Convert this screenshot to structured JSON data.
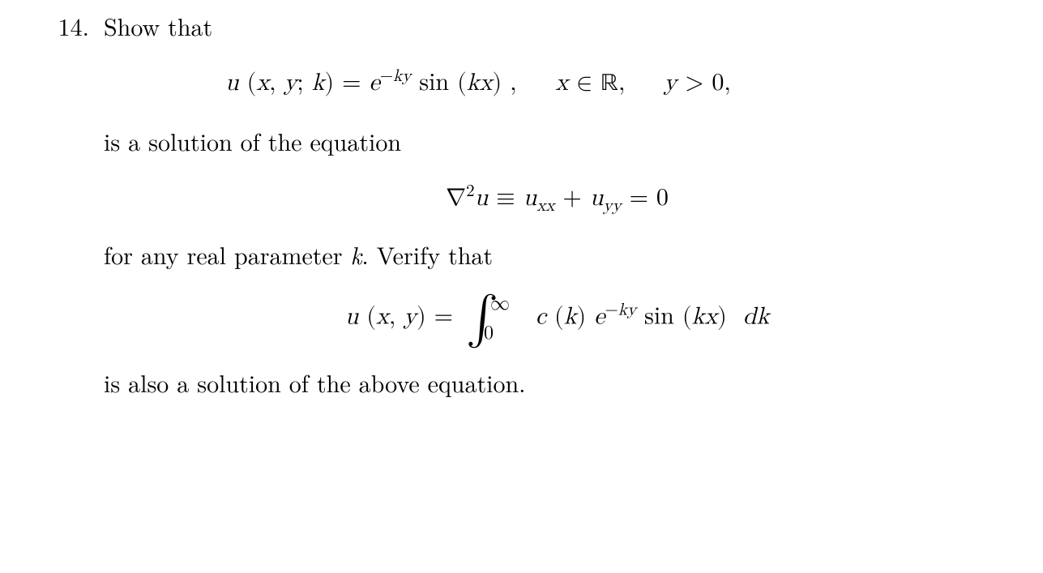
{
  "problem": {
    "number": "14.",
    "prose1": "Show that",
    "prose2": "is a solution of the equation",
    "prose3_a": "for any real parameter ",
    "prose3_var": "k",
    "prose3_b": ". Verify that",
    "prose4": "is also a solution of the above equation."
  },
  "equations": {
    "eq1": {
      "u": "u",
      "lpar": "(",
      "x": "x",
      "comma1": ", ",
      "y": "y",
      "semi": "; ",
      "k": "k",
      "rpar": ")",
      "eq": " = ",
      "e": "e",
      "exp_minus": "−",
      "exp_k": "k",
      "exp_y": "y",
      "sin": " sin ",
      "lpar2": "(",
      "kx_k": "k",
      "kx_x": "x",
      "rpar2": ")",
      "comma2": " ,",
      "x2": "x",
      "in": " ∈ ",
      "R": "ℝ",
      "comma3": ",",
      "y2": "y",
      "gt": " > ",
      "zero": "0,",
      "colors": {
        "text": "#000000",
        "bg": "#ffffff"
      }
    },
    "eq2": {
      "nabla": "∇",
      "sq": "2",
      "u": "u",
      "equiv": " ≡ ",
      "u2": "u",
      "xx": "xx",
      "plus": " + ",
      "u3": "u",
      "yy": "yy",
      "eq": " = ",
      "zero": "0"
    },
    "eq3": {
      "u": "u",
      "lpar": "(",
      "x": "x",
      "comma": ", ",
      "y": "y",
      "rpar": ")",
      "eq": " = ",
      "int_lower": "0",
      "int_upper": "∞",
      "c": "c",
      "lpar2": "(",
      "k": "k",
      "rpar2": ")",
      "e": " e",
      "exp_minus": "−",
      "exp_k": "k",
      "exp_y": "y",
      "sin": " sin ",
      "lpar3": "(",
      "kx_k": "k",
      "kx_x": "x",
      "rpar3": ")",
      "dk": " dk",
      "d": "d",
      "k2": "k"
    }
  },
  "style": {
    "font_size_body": 30,
    "font_size_math": 30,
    "text_color": "#000000",
    "background": "#ffffff"
  }
}
